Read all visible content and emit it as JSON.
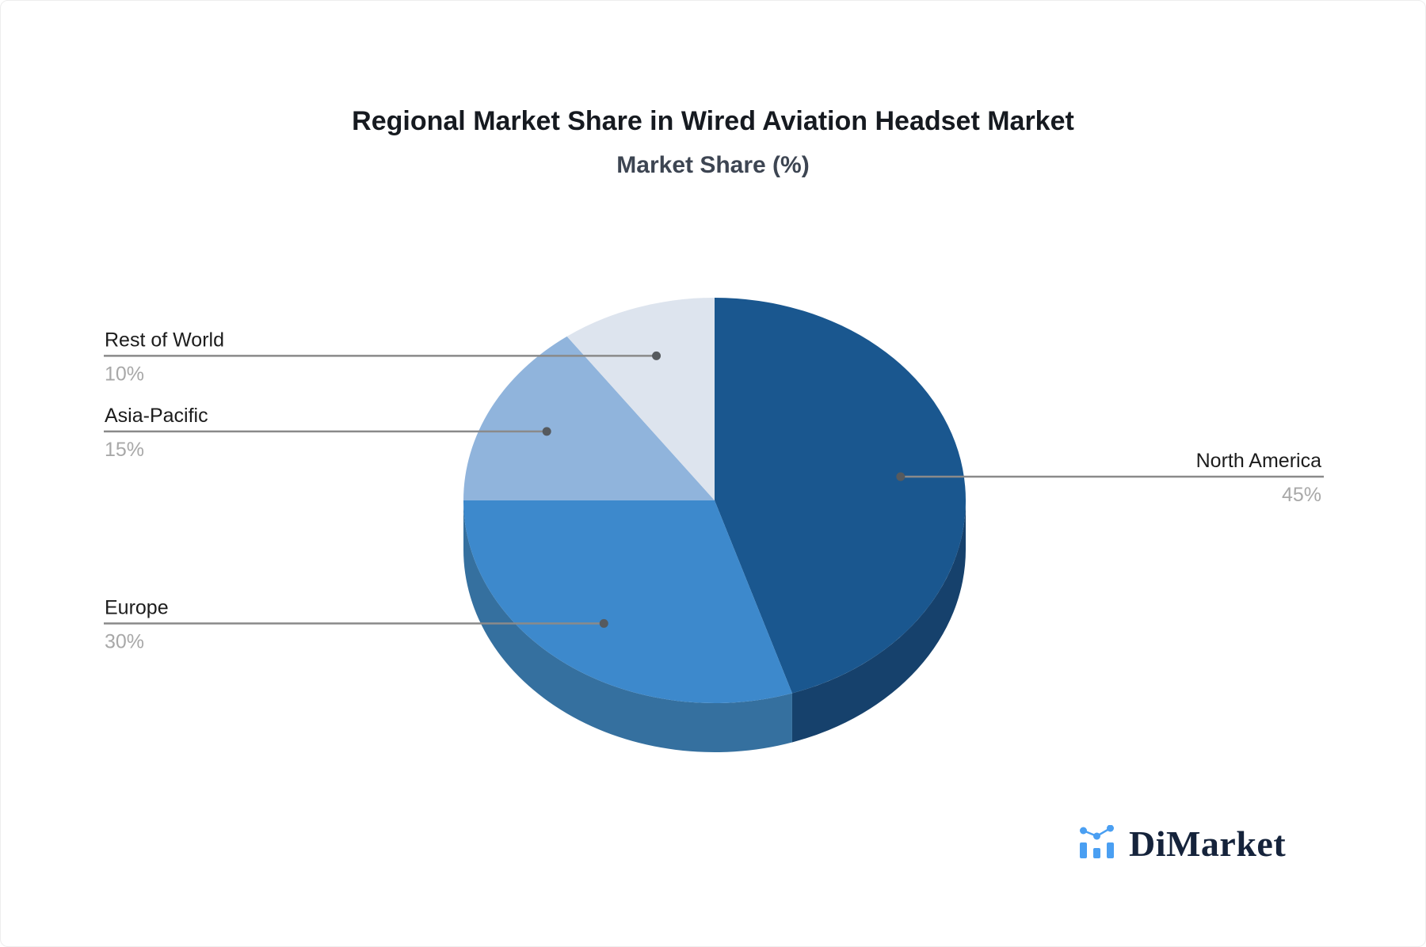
{
  "header": {
    "title": "Regional Market Share in Wired Aviation Headset Market",
    "subtitle": "Market Share (%)"
  },
  "brand": {
    "name": "DiMarket",
    "icon": "bar-chart-logo-icon",
    "icon_color": "#4a9ff2",
    "text_color": "#15233b"
  },
  "chart_data": {
    "type": "pie",
    "title": "Regional Market Share in Wired Aviation Headset Market",
    "subtitle": "Market Share (%)",
    "unit": "%",
    "effect": "3d",
    "start_angle_deg": 0,
    "direction": "clockwise",
    "slices": [
      {
        "label": "North America",
        "value": 45,
        "display": "45%",
        "color": "#1a578f",
        "side_color": "#16416c"
      },
      {
        "label": "Europe",
        "value": 30,
        "display": "30%",
        "color": "#3d89cc",
        "side_color": "#35709f"
      },
      {
        "label": "Asia-Pacific",
        "value": 15,
        "display": "15%",
        "color": "#90b4dc",
        "side_color": "#7494bb"
      },
      {
        "label": "Rest of World",
        "value": 10,
        "display": "10%",
        "color": "#dde4ee",
        "side_color": "#b9c2cf"
      }
    ],
    "legend_position": "none",
    "label_style": {
      "label_color": "#1c1c1c",
      "pct_color": "#a8a8a8",
      "leader_line_color": "#8a8a8a",
      "leader_dot_color": "#565a5e"
    }
  }
}
